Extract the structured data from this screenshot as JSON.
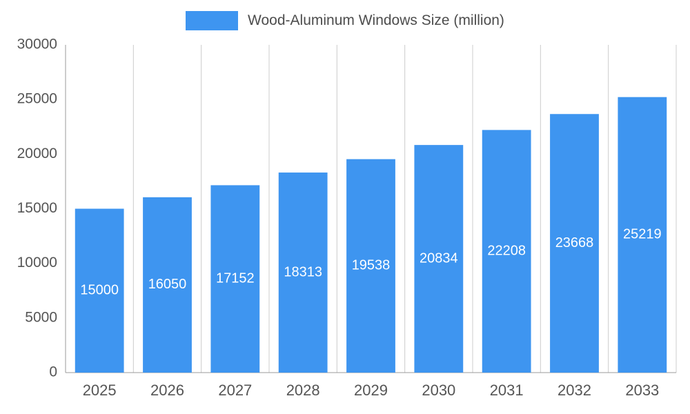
{
  "chart_data": {
    "type": "bar",
    "title": "",
    "legend": "Wood-Aluminum Windows Size (million)",
    "categories": [
      "2025",
      "2026",
      "2027",
      "2028",
      "2029",
      "2030",
      "2031",
      "2032",
      "2033"
    ],
    "values": [
      15000,
      16050,
      17152,
      18313,
      19538,
      20834,
      22208,
      23668,
      25219
    ],
    "xlabel": "",
    "ylabel": "",
    "ylim": [
      0,
      30000
    ],
    "yticks": [
      0,
      5000,
      10000,
      15000,
      20000,
      25000,
      30000
    ],
    "grid": "vertical-only",
    "legend_position": "top-center",
    "bar_color": "#3E95F0",
    "bar_label_color": "#ffffff",
    "axis_text_color": "#555555",
    "axis_line_color": "#999999",
    "grid_line_color": "#cccccc"
  }
}
